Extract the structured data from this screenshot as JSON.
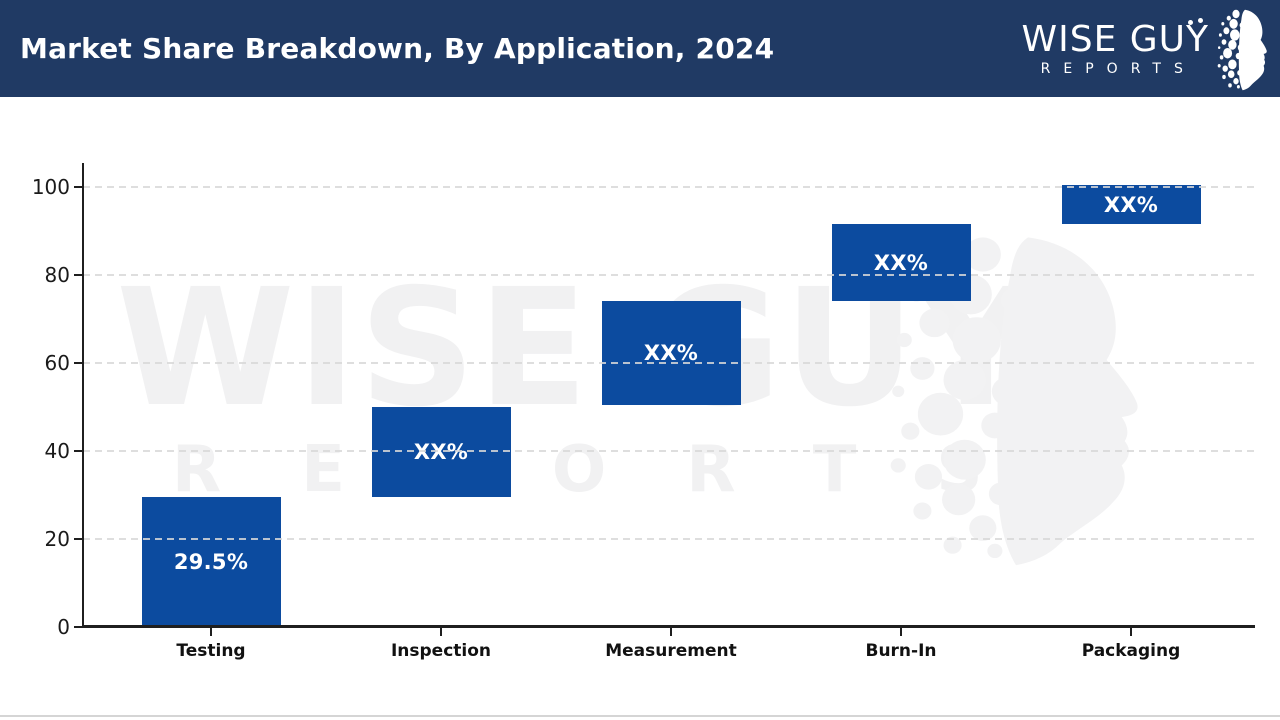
{
  "header": {
    "title": "Market Share Breakdown, By Application, 2024",
    "logo": {
      "line1": "WISE GUY",
      "line2": "REPORTS"
    }
  },
  "watermark": {
    "line1": "WISE GUY",
    "line2": "REPORTS"
  },
  "colors": {
    "header_bg": "#203a64",
    "bar": "#0c4b9f",
    "bar_label_text": "#ffffff",
    "grid": "#d8d8d8",
    "axis": "#1f1f1f",
    "watermark": "#f1f1f2"
  },
  "chart_data": {
    "type": "bar",
    "subtype": "waterfall-floating-bars",
    "title": "Market Share Breakdown, By Application, 2024",
    "categories": [
      "Testing",
      "Inspection",
      "Measurement",
      "Burn-In",
      "Packaging"
    ],
    "segments": [
      {
        "category": "Testing",
        "start": 0,
        "end": 29.5,
        "value_label": "29.5%"
      },
      {
        "category": "Inspection",
        "start": 29.5,
        "end": 50.0,
        "value_label": "XX%"
      },
      {
        "category": "Measurement",
        "start": 50.5,
        "end": 74.0,
        "value_label": "XX%"
      },
      {
        "category": "Burn-In",
        "start": 74.0,
        "end": 91.5,
        "value_label": "XX%"
      },
      {
        "category": "Packaging",
        "start": 91.5,
        "end": 100.5,
        "value_label": "XX%"
      }
    ],
    "yticks": [
      0,
      20,
      40,
      60,
      80,
      100
    ],
    "ylim": [
      0,
      106
    ],
    "xlabel": "",
    "ylabel": "",
    "grid": "horizontal-dashed-over-bars",
    "legend": "none"
  }
}
